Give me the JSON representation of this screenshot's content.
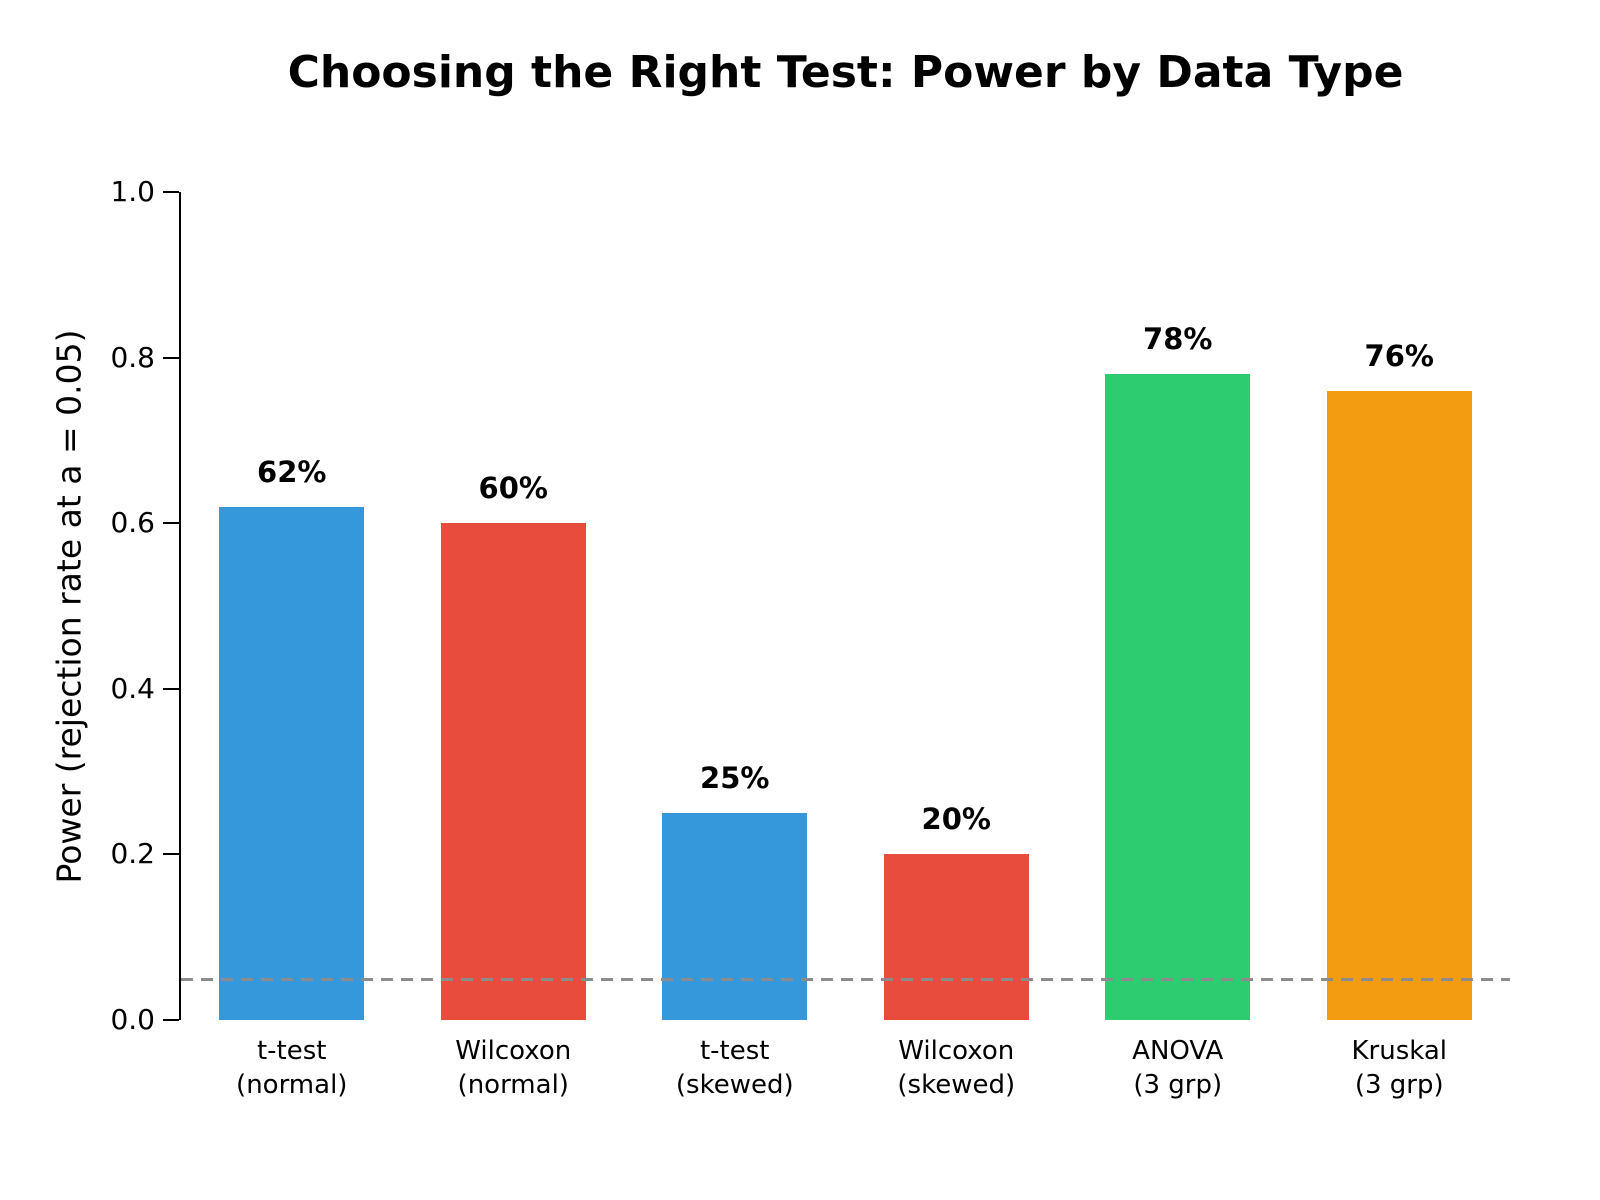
{
  "title": "Choosing the Right Test: Power by Data Type",
  "chart_data": {
    "type": "bar",
    "title": "Choosing the Right Test: Power by Data Type",
    "categories": [
      "t-test (normal)",
      "Wilcoxon (normal)",
      "t-test (skewed)",
      "Wilcoxon (skewed)",
      "ANOVA (3 grp)",
      "Kruskal (3 grp)"
    ],
    "category_lines": [
      [
        "t-test",
        "(normal)"
      ],
      [
        "Wilcoxon",
        "(normal)"
      ],
      [
        "t-test",
        "(skewed)"
      ],
      [
        "Wilcoxon",
        "(skewed)"
      ],
      [
        "ANOVA",
        "(3 grp)"
      ],
      [
        "Kruskal",
        "(3 grp)"
      ]
    ],
    "values": [
      0.62,
      0.6,
      0.25,
      0.2,
      0.78,
      0.76
    ],
    "value_labels": [
      "62%",
      "60%",
      "25%",
      "20%",
      "78%",
      "76%"
    ],
    "bar_colors": [
      "#3498db",
      "#e74c3c",
      "#3498db",
      "#e74c3c",
      "#2ecc71",
      "#f39c12"
    ],
    "xlabel": "",
    "ylabel": "Power (rejection rate at a = 0.05)",
    "ylim": [
      0.0,
      1.0
    ],
    "yticks": [
      0.0,
      0.2,
      0.4,
      0.6,
      0.8,
      1.0
    ],
    "ytick_labels": [
      "0.0",
      "0.2",
      "0.4",
      "0.6",
      "0.8",
      "1.0"
    ],
    "grid": false,
    "legend": null,
    "reference_line": {
      "y": 0.05,
      "color": "#8c8c8c",
      "style": "dashed"
    }
  },
  "colors": {
    "background": "#ffffff",
    "axis": "#000000",
    "text": "#000000",
    "bar_blue": "#3498db",
    "bar_red": "#e74c3c",
    "bar_green": "#2ecc71",
    "bar_orange": "#f39c12",
    "reference_line": "#8c8c8c"
  }
}
